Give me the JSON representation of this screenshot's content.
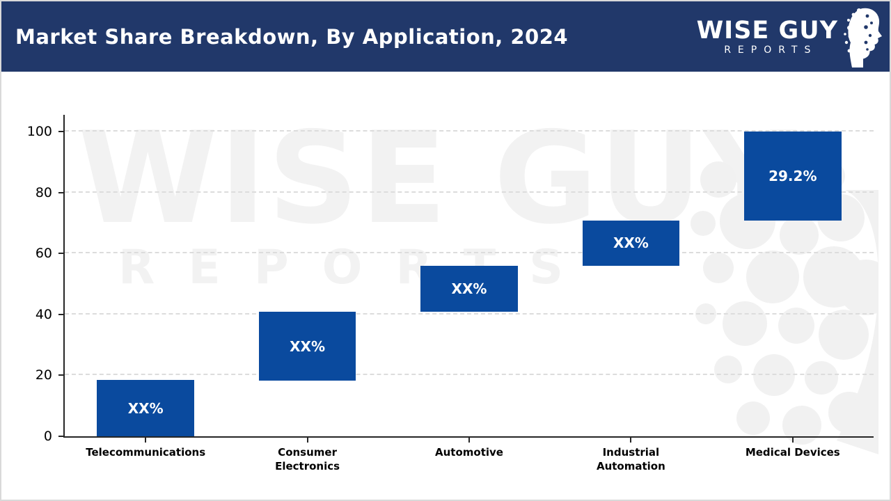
{
  "header": {
    "title": "Market Share Breakdown, By Application, 2024",
    "logo": {
      "line1": "WISE GUY",
      "line2": "REPORTS"
    }
  },
  "watermark": {
    "line1": "WISE GUY",
    "line2": "REPORTS"
  },
  "chart_data": {
    "type": "bar",
    "subtype": "waterfall-floating-bars",
    "title": "Market Share Breakdown, By Application, 2024",
    "categories": [
      "Telecommunications",
      "Consumer\nElectronics",
      "Automotive",
      "Industrial\nAutomation",
      "Medical Devices"
    ],
    "segments": [
      {
        "category": "Telecommunications",
        "start": 0,
        "end": 18.4,
        "label": "XX%"
      },
      {
        "category": "Consumer Electronics",
        "start": 18.2,
        "end": 40.8,
        "label": "XX%"
      },
      {
        "category": "Automotive",
        "start": 40.8,
        "end": 56.0,
        "label": "XX%"
      },
      {
        "category": "Industrial Automation",
        "start": 56.0,
        "end": 70.8,
        "label": "XX%"
      },
      {
        "category": "Medical Devices",
        "start": 70.8,
        "end": 100,
        "label": "29.2%"
      }
    ],
    "xlabel": "",
    "ylabel": "",
    "ylim": [
      0,
      105.5
    ],
    "yticks": [
      0,
      20,
      40,
      60,
      80,
      100
    ],
    "grid": "horizontal-dashed",
    "legend": "none",
    "bar_width_fraction": 0.6,
    "colors": {
      "bar": "#0a4a9e",
      "bar_label": "#ffffff",
      "header_bg": "#21386a",
      "grid": "#dcdcdc",
      "axis": "#262626",
      "watermark": "#f2f2f2"
    }
  }
}
